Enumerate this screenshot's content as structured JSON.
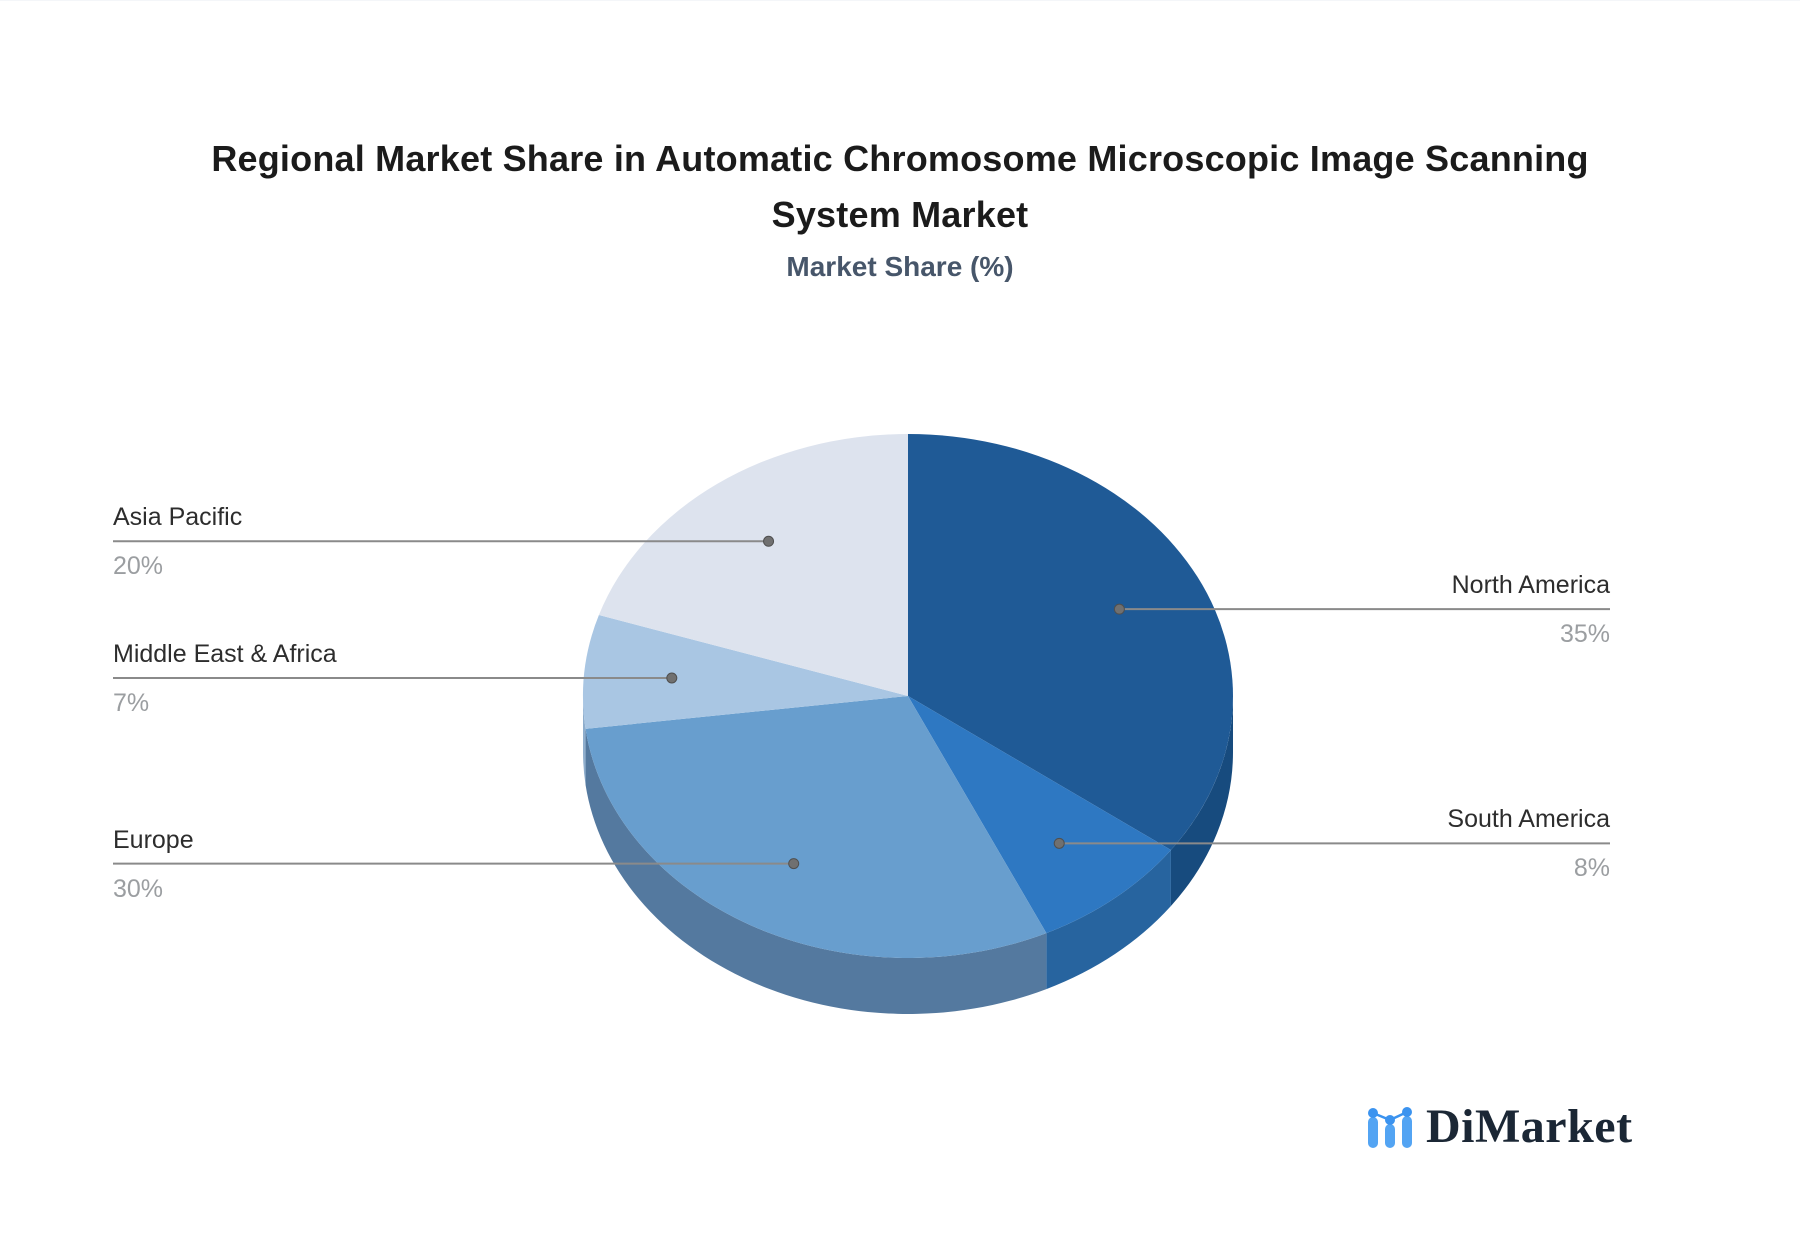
{
  "header": {
    "title_line1": "Regional Market Share in Automatic Chromosome Microscopic Image Scanning",
    "title_line2": "System Market",
    "subtitle": "Market Share (%)"
  },
  "chart_data": {
    "type": "pie",
    "title": "Regional Market Share in Automatic Chromosome Microscopic Image Scanning System Market",
    "subtitle": "Market Share (%)",
    "unit": "%",
    "effect": "3d",
    "start_angle_deg": 0,
    "direction": "clockwise",
    "legend_position": "none",
    "slices": [
      {
        "label": "North America",
        "value": 35,
        "display": "35%",
        "color": "#1F5A96",
        "side_color": "#174B7E",
        "label_side": "right"
      },
      {
        "label": "South America",
        "value": 8,
        "display": "8%",
        "color": "#2E78C2",
        "side_color": "#27649F",
        "label_side": "right"
      },
      {
        "label": "Europe",
        "value": 30,
        "display": "30%",
        "color": "#689ECE",
        "side_color": "#54799F",
        "label_side": "left"
      },
      {
        "label": "Middle East & Africa",
        "value": 7,
        "display": "7%",
        "color": "#A9C6E3",
        "side_color": "#8FAECD",
        "label_side": "left"
      },
      {
        "label": "Asia Pacific",
        "value": 20,
        "display": "20%",
        "color": "#DDE3EE",
        "side_color": "#B9C3D3",
        "label_side": "left"
      }
    ]
  },
  "branding": {
    "logo_text": "DiMarket",
    "logo_icon": "bar-chart-icon",
    "logo_icon_color": "#53A4F3",
    "logo_text_color": "#1B2735"
  }
}
